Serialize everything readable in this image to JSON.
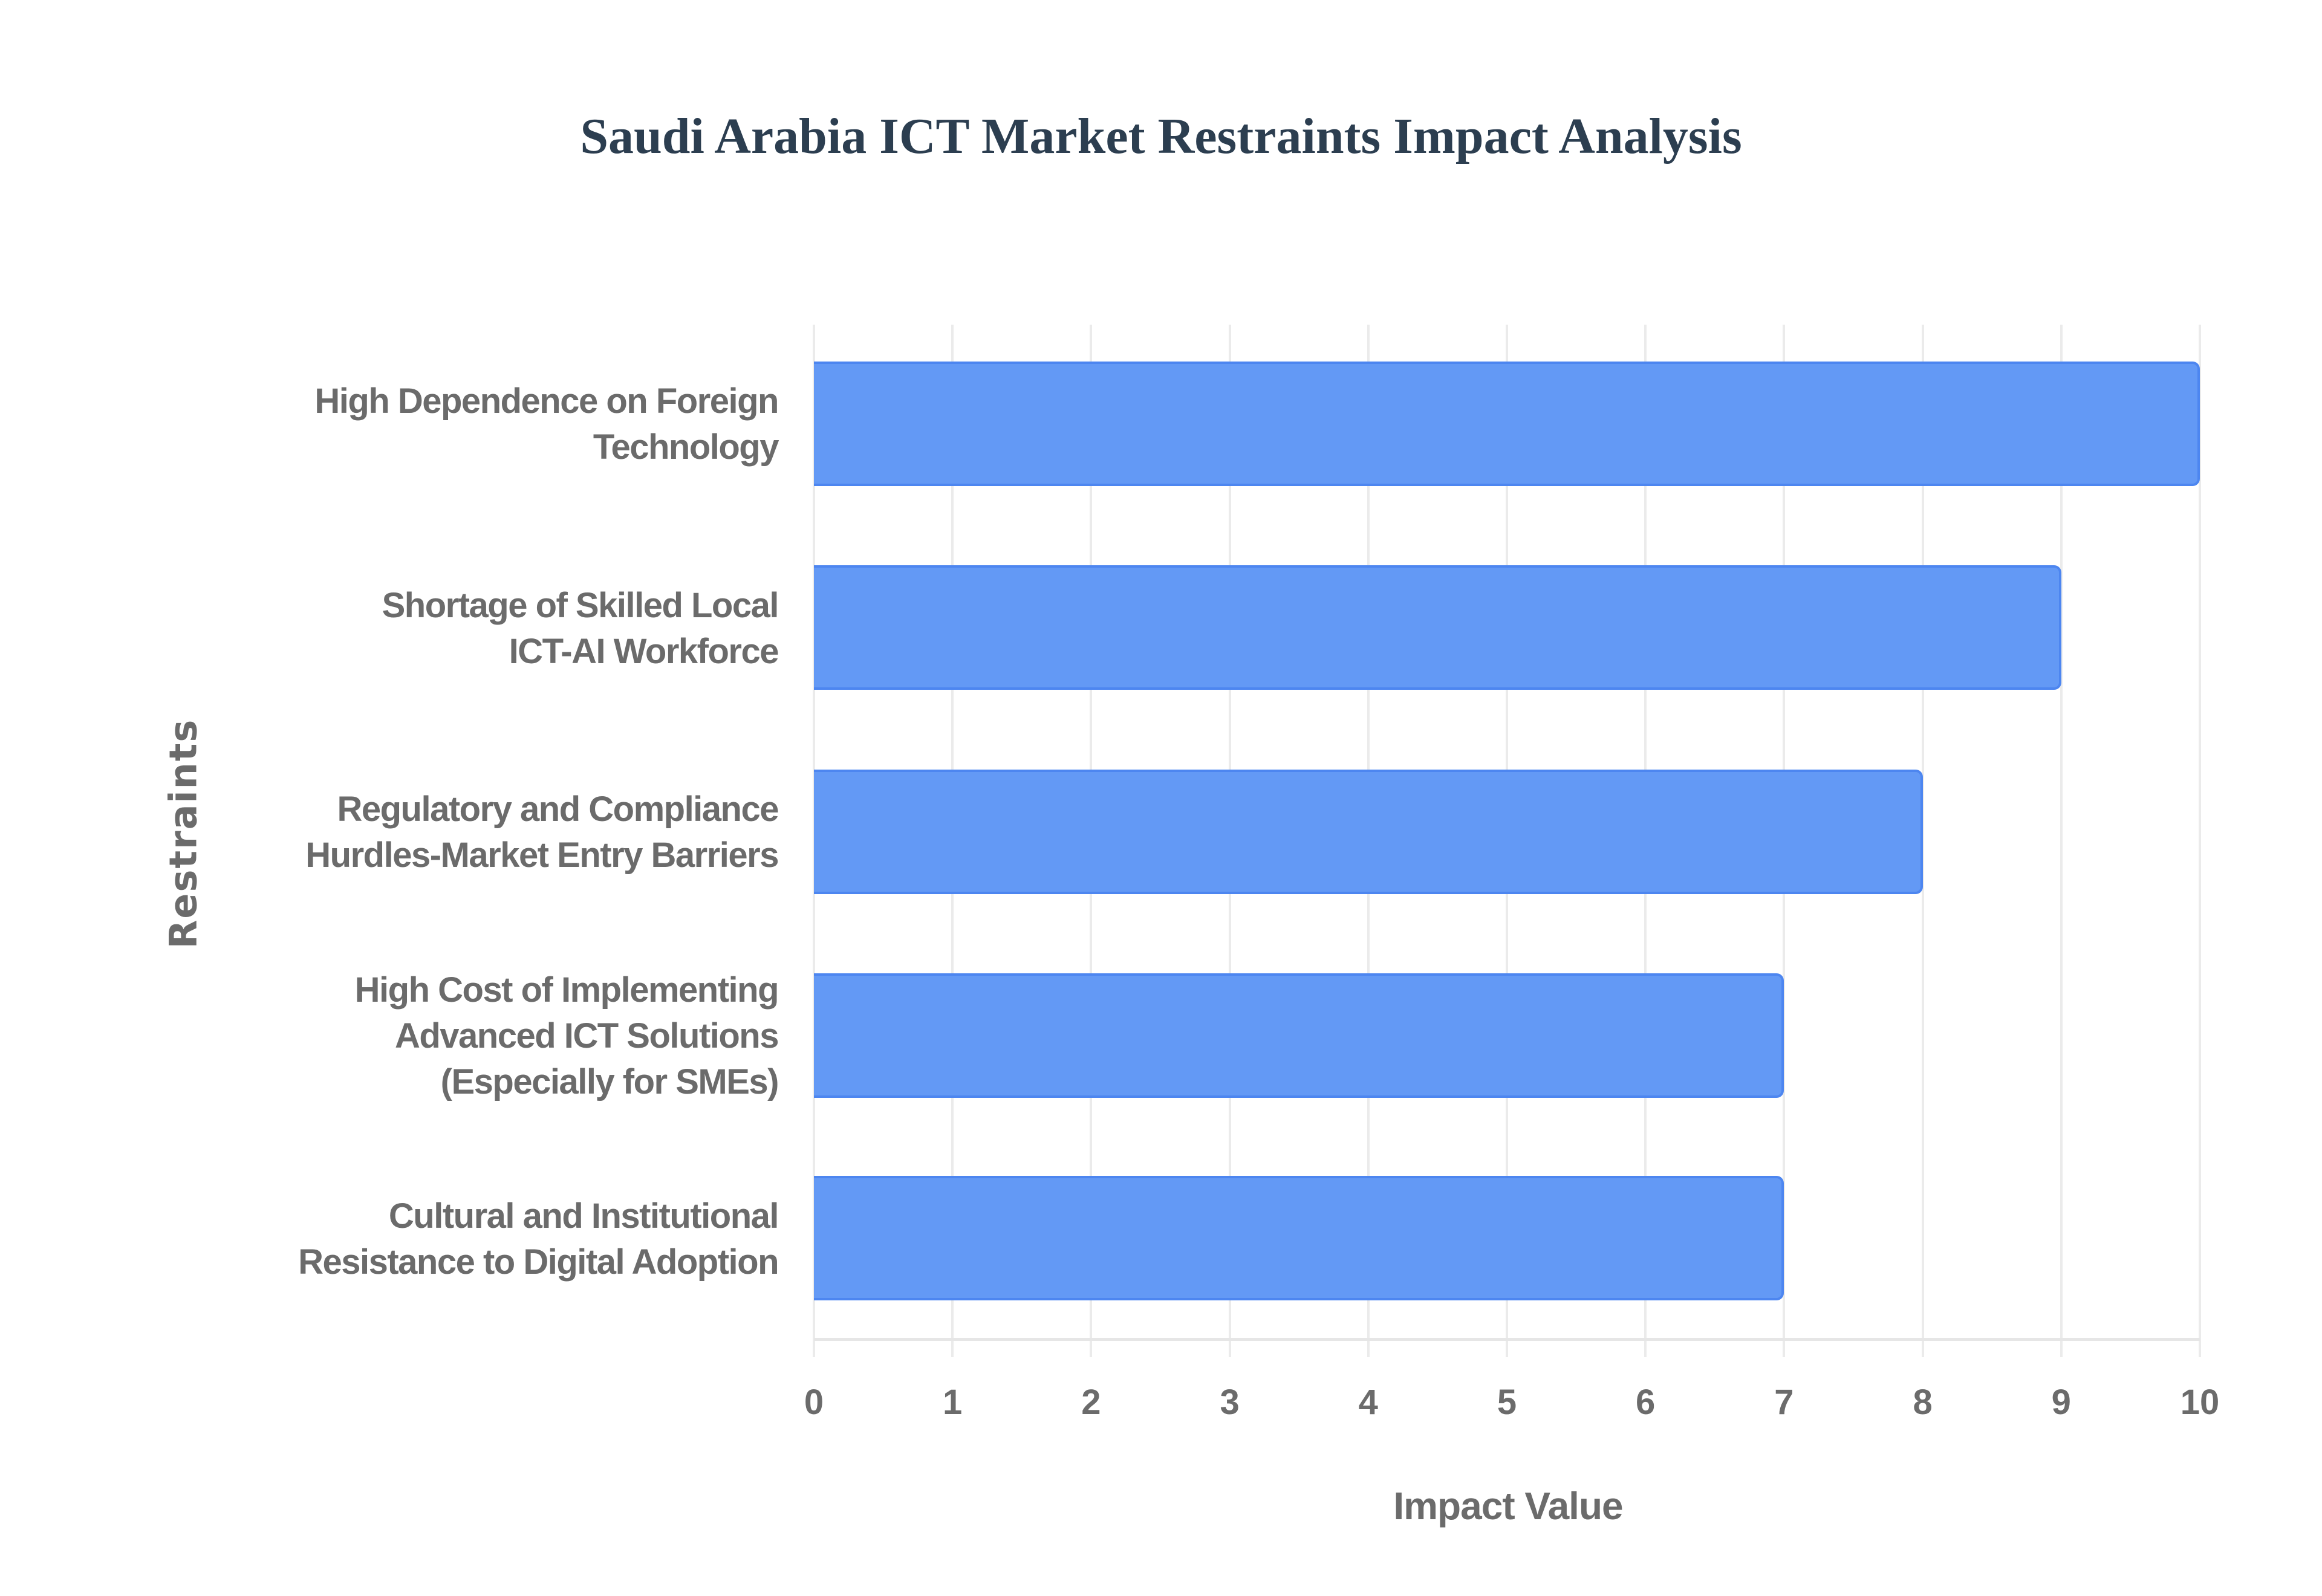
{
  "title": "Saudi Arabia ICT Market Restraints Impact Analysis",
  "colors": {
    "bar_fill": "#6399f5",
    "bar_border": "#4d86f0",
    "title": "#2c3e50",
    "axis_text": "#6b6b6b",
    "grid": "#ebebeb"
  },
  "axes": {
    "x_title": "Impact Value",
    "y_title": "Restraints",
    "x_ticks": [
      "0",
      "1",
      "2",
      "3",
      "4",
      "5",
      "6",
      "7",
      "8",
      "9",
      "10"
    ]
  },
  "bars": [
    {
      "label": "High Dependence on Foreign\nTechnology",
      "value": 10
    },
    {
      "label": "Shortage of Skilled Local\nICT-AI Workforce",
      "value": 9
    },
    {
      "label": "Regulatory and Compliance\nHurdles-Market Entry Barriers",
      "value": 8
    },
    {
      "label": "High Cost of Implementing\nAdvanced ICT Solutions\n(Especially for SMEs)",
      "value": 7
    },
    {
      "label": "Cultural and Institutional\nResistance to Digital Adoption",
      "value": 7
    }
  ],
  "chart_data": {
    "type": "bar",
    "orientation": "horizontal",
    "title": "Saudi Arabia ICT Market Restraints Impact Analysis",
    "xlabel": "Impact Value",
    "ylabel": "Restraints",
    "categories": [
      "High Dependence on Foreign Technology",
      "Shortage of Skilled Local ICT-AI Workforce",
      "Regulatory and Compliance Hurdles-Market Entry Barriers",
      "High Cost of Implementing Advanced ICT Solutions (Especially for SMEs)",
      "Cultural and Institutional Resistance to Digital Adoption"
    ],
    "values": [
      10,
      9,
      8,
      7,
      7
    ],
    "xlim": [
      0,
      10
    ],
    "x_ticks": [
      0,
      1,
      2,
      3,
      4,
      5,
      6,
      7,
      8,
      9,
      10
    ],
    "grid": true,
    "legend": null
  }
}
